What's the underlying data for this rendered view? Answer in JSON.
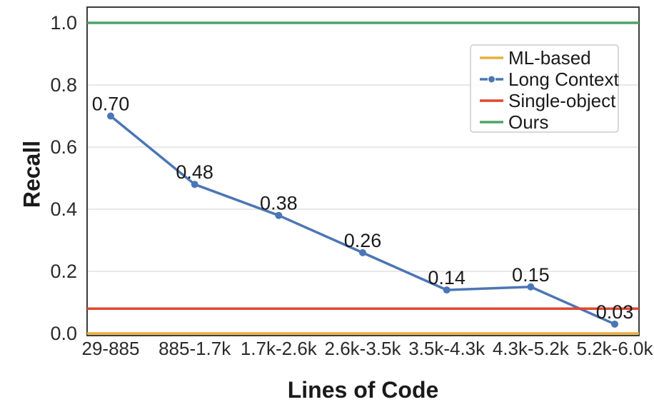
{
  "chart_data": {
    "type": "line",
    "title": "",
    "xlabel": "Lines of Code",
    "ylabel": "Recall",
    "categories": [
      "29-885",
      "885-1.7k",
      "1.7k-2.6k",
      "2.6k-3.5k",
      "3.5k-4.3k",
      "4.3k-5.2k",
      "5.2k-6.0k"
    ],
    "yticks": [
      0.0,
      0.2,
      0.4,
      0.6,
      0.8,
      1.0
    ],
    "ytick_labels": [
      "0.0",
      "0.2",
      "0.4",
      "0.6",
      "0.8",
      "1.0"
    ],
    "ylim": [
      -0.007,
      1.05
    ],
    "grid": "horizontal-only",
    "legend_position": "upper-right",
    "series": [
      {
        "name": "ML-based",
        "kind": "hline",
        "value": 0.0,
        "color": "#E9AE3B"
      },
      {
        "name": "Long Context",
        "kind": "line-markers",
        "values": [
          0.7,
          0.48,
          0.38,
          0.26,
          0.14,
          0.15,
          0.03
        ],
        "point_labels": [
          "0.70",
          "0.48",
          "0.38",
          "0.26",
          "0.14",
          "0.15",
          "0.03"
        ],
        "color": "#4B76B5"
      },
      {
        "name": "Single-object",
        "kind": "hline",
        "value": 0.08,
        "color": "#E0482F"
      },
      {
        "name": "Ours",
        "kind": "hline",
        "value": 1.0,
        "color": "#4FA368"
      }
    ]
  },
  "styles": {
    "grid_color": "#d9d9d9",
    "spine_color": "#262626",
    "tick_color": "#2b2b2b",
    "annotation_color": "#1a1a1a",
    "legend_border": "#cccccc",
    "legend_text_color": "#1a1a1a",
    "background": "#ffffff"
  }
}
